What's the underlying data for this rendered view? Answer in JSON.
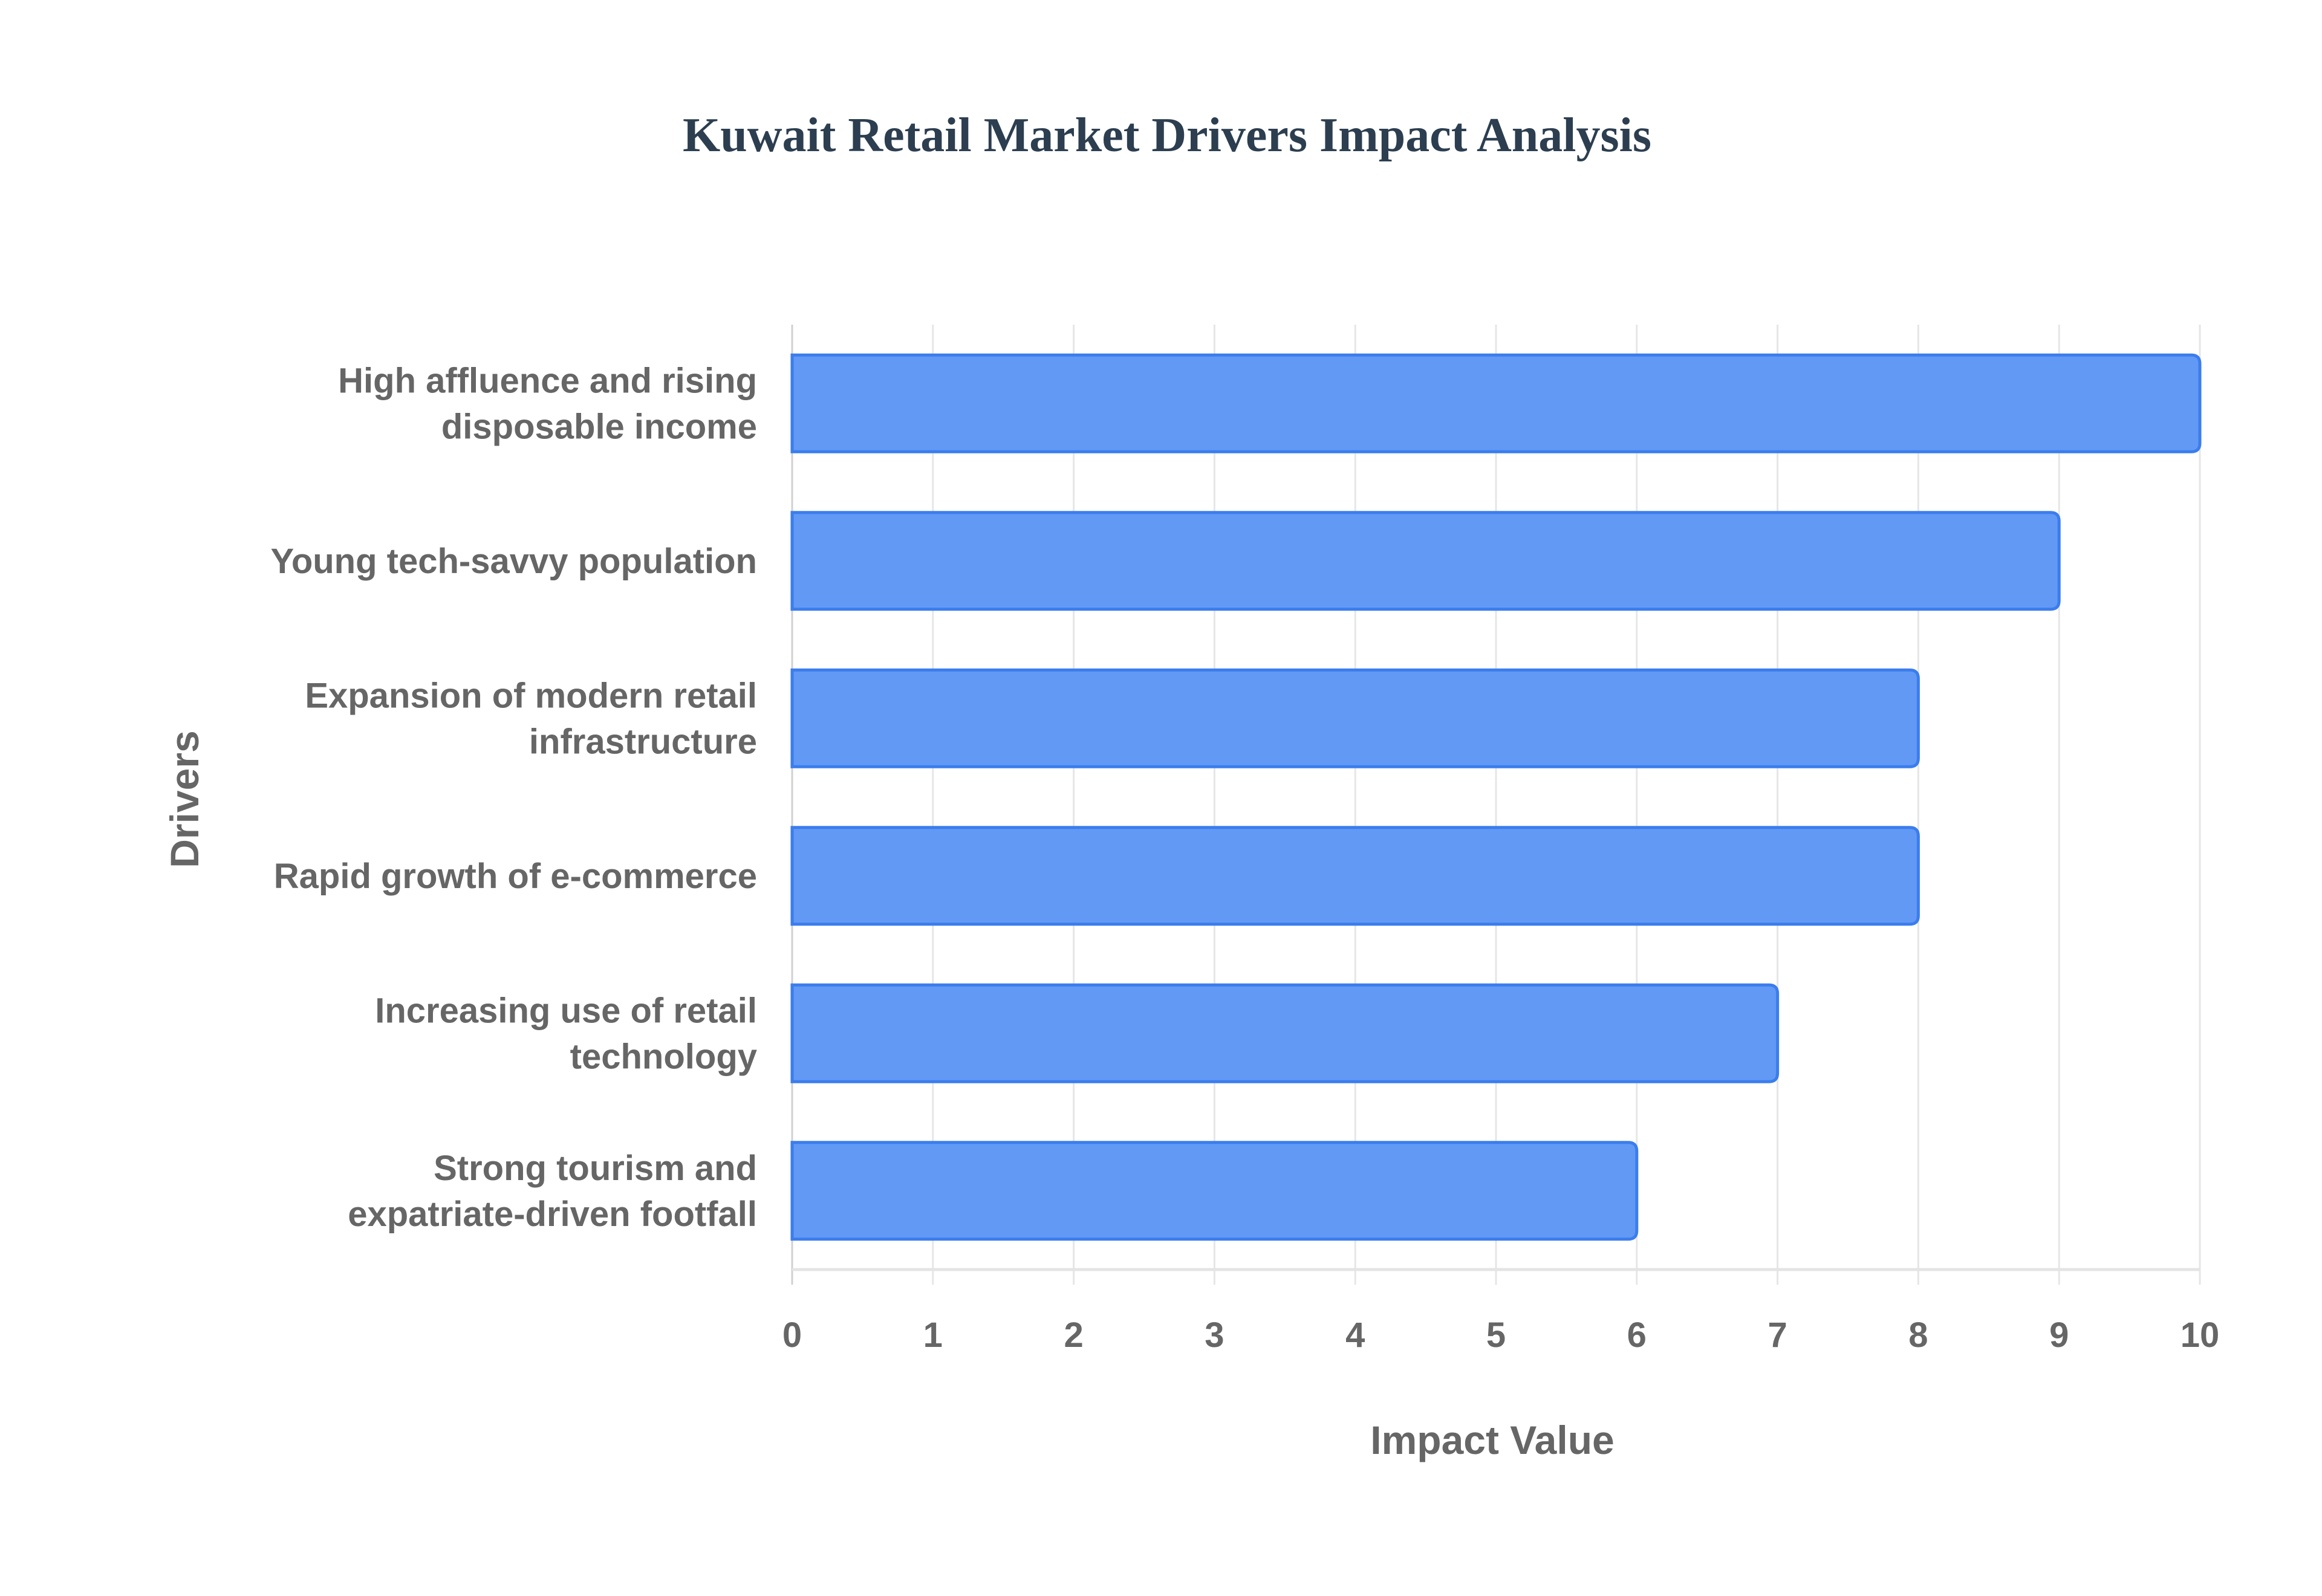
{
  "chart_data": {
    "type": "bar",
    "orientation": "horizontal",
    "title": "Kuwait Retail Market Drivers Impact Analysis",
    "xlabel": "Impact Value",
    "ylabel": "Drivers",
    "xlim": [
      0,
      10
    ],
    "xticks": [
      "0",
      "1",
      "2",
      "3",
      "4",
      "5",
      "6",
      "7",
      "8",
      "9",
      "10"
    ],
    "grid": true,
    "categories": [
      [
        "High affluence and rising",
        "disposable income"
      ],
      [
        "Young tech-savvy population"
      ],
      [
        "Expansion of modern retail",
        "infrastructure"
      ],
      [
        "Rapid growth of e-commerce"
      ],
      [
        "Increasing use of retail",
        "technology"
      ],
      [
        "Strong tourism and",
        "expatriate-driven footfall"
      ]
    ],
    "values": [
      10,
      9,
      8,
      8,
      7,
      6
    ],
    "colors": {
      "bar_fill": "#6199f5",
      "bar_border": "#3b7ded",
      "grid": "#e6e6e6",
      "text": "#666666",
      "title": "#2c3e50"
    }
  }
}
